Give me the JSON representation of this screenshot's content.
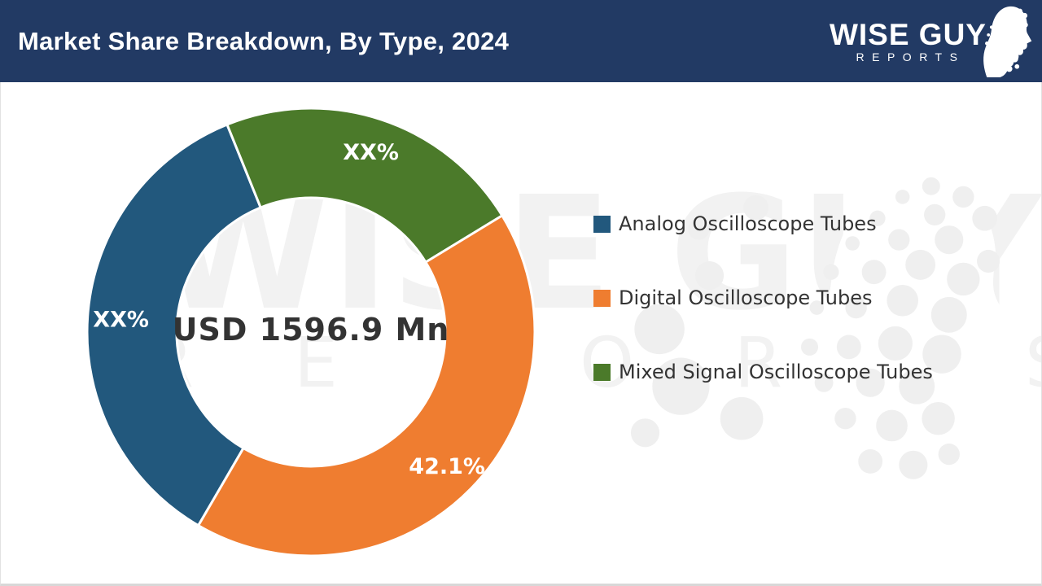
{
  "header": {
    "title": "Market Share Breakdown, By Type, 2024",
    "bg_color": "#223A64",
    "brand": {
      "line1": "WISE GUY",
      "line2": "REPORTS"
    }
  },
  "watermark": {
    "line1": "WISE GUY",
    "line2": "R E P O R T S"
  },
  "chart_data": {
    "type": "donut",
    "center_label": "USD 1596.9 Mn",
    "start_angle_deg": 210.2,
    "draw_order": [
      0,
      2,
      1
    ],
    "donut_hole_ratio": 0.6,
    "gap_color": "#ffffff",
    "legend_position": "right",
    "segments": [
      {
        "label": "Analog Oscilloscope Tubes",
        "value_label": "XX%",
        "percent": 35.5,
        "color": "#22587D"
      },
      {
        "label": "Digital Oscilloscope Tubes",
        "value_label": "42.1%",
        "percent": 42.1,
        "color": "#EF7D30"
      },
      {
        "label": "Mixed Signal Oscilloscope Tubes",
        "value_label": "XX%",
        "percent": 22.4,
        "color": "#4B7A2A"
      }
    ]
  }
}
